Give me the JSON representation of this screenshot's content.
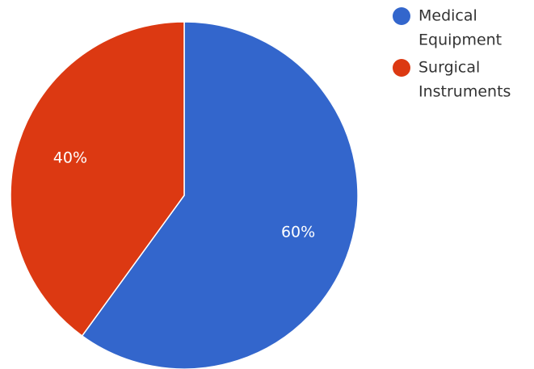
{
  "chart_data": {
    "type": "pie",
    "slices": [
      {
        "label": "Medical Equipment",
        "value": 60,
        "display": "60%",
        "color": "#3366cc"
      },
      {
        "label": "Surgical Instruments",
        "value": 40,
        "display": "40%",
        "color": "#dc3912"
      }
    ],
    "legend": {
      "position": "top-right",
      "entries": [
        {
          "lines": [
            "Medical",
            "Equipment"
          ],
          "color": "#3366cc"
        },
        {
          "lines": [
            "Surgical",
            "Instruments"
          ],
          "color": "#dc3912"
        }
      ]
    }
  }
}
